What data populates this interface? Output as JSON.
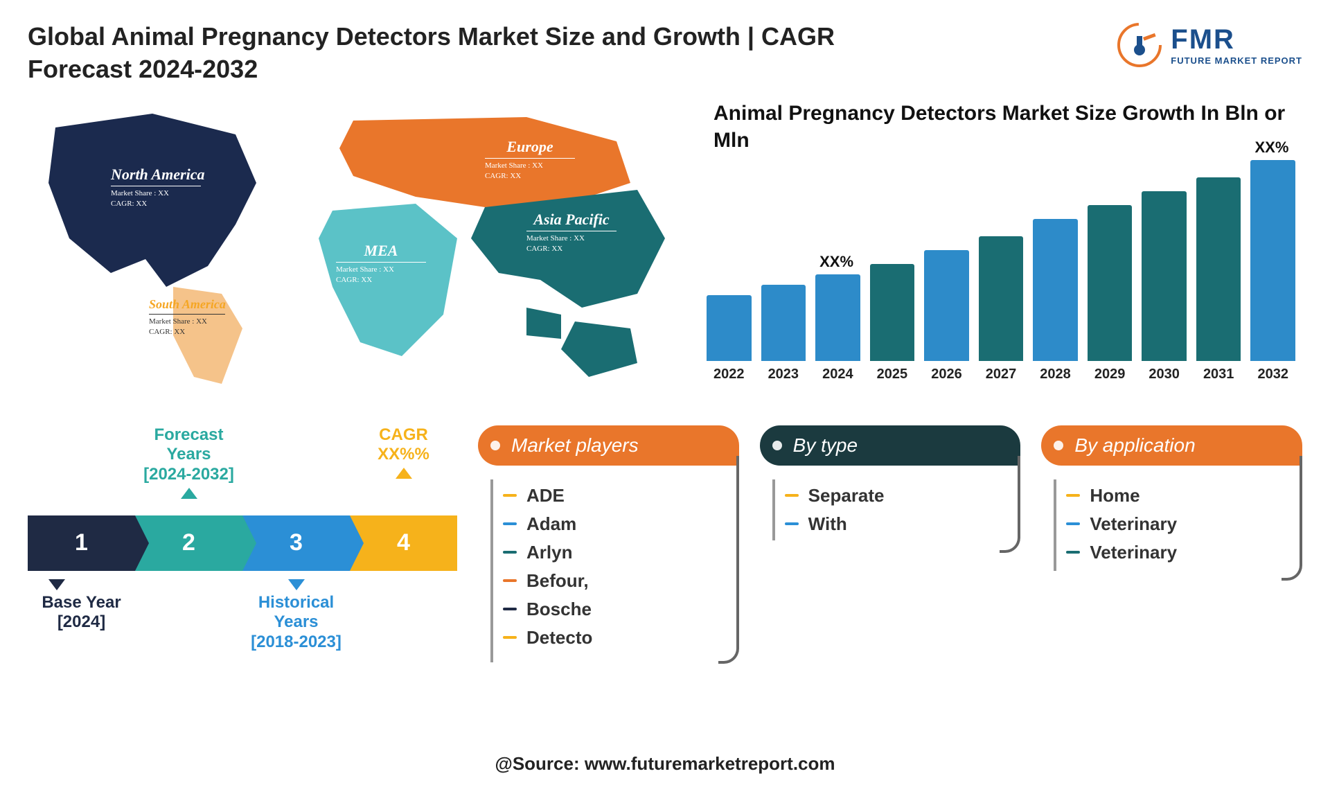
{
  "title": "Global Animal Pregnancy Detectors Market Size and Growth | CAGR Forecast 2024-2032",
  "logo": {
    "main": "FMR",
    "sub": "FUTURE MARKET REPORT",
    "accent": "#e9762b",
    "color": "#1b4f8c"
  },
  "map": {
    "regions": {
      "north_america": {
        "name": "North America",
        "share": "Market Share : XX",
        "cagr": "CAGR: XX",
        "color": "#1b2a4e"
      },
      "south_america": {
        "name": "South America",
        "share": "Market Share : XX",
        "cagr": "CAGR: XX",
        "color": "#f5c38a"
      },
      "mea": {
        "name": "MEA",
        "share": "Market Share : XX",
        "cagr": "CAGR: XX",
        "color": "#5bc2c7"
      },
      "europe": {
        "name": "Europe",
        "share": "Market Share : XX",
        "cagr": "CAGR: XX",
        "color": "#e9762b"
      },
      "asia_pacific": {
        "name": "Asia Pacific",
        "share": "Market Share : XX",
        "cagr": "CAGR: XX",
        "color": "#1a6d72"
      }
    }
  },
  "chart": {
    "title": "Animal Pregnancy Detectors Market Size Growth In Bln or Mln",
    "years": [
      "2022",
      "2023",
      "2024",
      "2025",
      "2026",
      "2027",
      "2028",
      "2029",
      "2030",
      "2031",
      "2032"
    ],
    "values": [
      95,
      110,
      125,
      140,
      160,
      180,
      205,
      225,
      245,
      265,
      290
    ],
    "max": 300,
    "colors": [
      "#2d8bc9",
      "#2d8bc9",
      "#2d8bc9",
      "#1a6d72",
      "#2d8bc9",
      "#1a6d72",
      "#2d8bc9",
      "#1a6d72",
      "#1a6d72",
      "#1a6d72",
      "#2d8bc9"
    ],
    "tag_2024": "XX%",
    "tag_2032": "XX%",
    "label_fontsize": 20,
    "bg": "#ffffff"
  },
  "timeline": {
    "segments": [
      {
        "num": "1",
        "color": "#1f2a44"
      },
      {
        "num": "2",
        "color": "#2aa9a0"
      },
      {
        "num": "3",
        "color": "#2b8fd6"
      },
      {
        "num": "4",
        "color": "#f6b21b"
      }
    ],
    "base": {
      "label": "Base Year",
      "range": "[2024]",
      "color": "#1f2a44"
    },
    "forecast": {
      "label": "Forecast Years",
      "range": "[2024-2032]",
      "color": "#2aa9a0"
    },
    "historical": {
      "label": "Historical Years",
      "range": "[2018-2023]",
      "color": "#2b8fd6"
    },
    "cagr": {
      "label": "CAGR",
      "range": "XX%%",
      "color": "#f6b21b"
    }
  },
  "pill_players": {
    "title": "Market players",
    "bg": "#e9762b",
    "items": [
      {
        "t": "ADE",
        "c": "#f6b21b"
      },
      {
        "t": "Adam",
        "c": "#2b8fd6"
      },
      {
        "t": "Arlyn",
        "c": "#1a6d72"
      },
      {
        "t": "Befour,",
        "c": "#e9762b"
      },
      {
        "t": "Bosche",
        "c": "#1f2a44"
      },
      {
        "t": "Detecto",
        "c": "#f6b21b"
      }
    ]
  },
  "pill_type": {
    "title": "By type",
    "bg": "#1b3a3f",
    "items": [
      {
        "t": "Separate",
        "c": "#f6b21b"
      },
      {
        "t": "With",
        "c": "#2b8fd6"
      }
    ]
  },
  "pill_app": {
    "title": "By application",
    "bg": "#e9762b",
    "items": [
      {
        "t": "Home",
        "c": "#f6b21b"
      },
      {
        "t": "Veterinary",
        "c": "#2b8fd6"
      },
      {
        "t": "Veterinary",
        "c": "#1a6d72"
      }
    ]
  },
  "source": "@Source: www.futuremarketreport.com"
}
